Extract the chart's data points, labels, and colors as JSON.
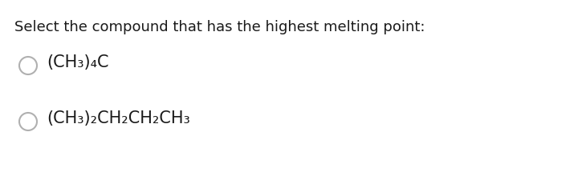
{
  "title": "Select the compound that has the highest melting point:",
  "options": [
    "(CH₃)₄C",
    "(CH₃)₂CH₂CH₂CH₃"
  ],
  "title_fontsize": 13,
  "option_fontsize": 15,
  "background_color": "#ffffff",
  "text_color": "#1a1a1a",
  "circle_edge_color": "#b0b0b0",
  "circle_fill_color": "#ffffff",
  "font_weight": "normal"
}
